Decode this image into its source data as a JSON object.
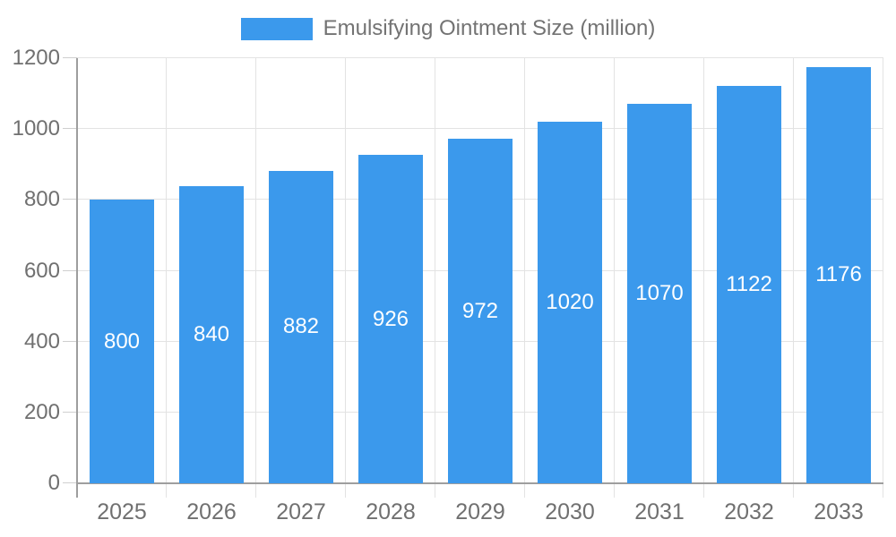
{
  "legend": {
    "label": "Emulsifying Ointment Size (million)"
  },
  "chart_data": {
    "type": "bar",
    "title": "",
    "categories": [
      "2025",
      "2026",
      "2027",
      "2028",
      "2029",
      "2030",
      "2031",
      "2032",
      "2033"
    ],
    "series": [
      {
        "name": "Emulsifying Ointment Size (million)",
        "values": [
          800,
          840,
          882,
          926,
          972,
          1020,
          1070,
          1122,
          1176
        ]
      }
    ],
    "value_labels_shown": true,
    "xlabel": "",
    "ylabel": "",
    "ylim": [
      0,
      1200
    ],
    "yticks": [
      0,
      200,
      400,
      600,
      800,
      1000,
      1200
    ],
    "grid": true,
    "legend_position": "top",
    "colors": {
      "bar": "#3b99ec",
      "value_label": "#ffffff",
      "axis_line": "#9e9e9e",
      "gridline": "#e3e3e3",
      "tick": "#cfcfcf",
      "axis_text": "#707070",
      "legend_text": "#737373",
      "background": "#ffffff"
    }
  }
}
